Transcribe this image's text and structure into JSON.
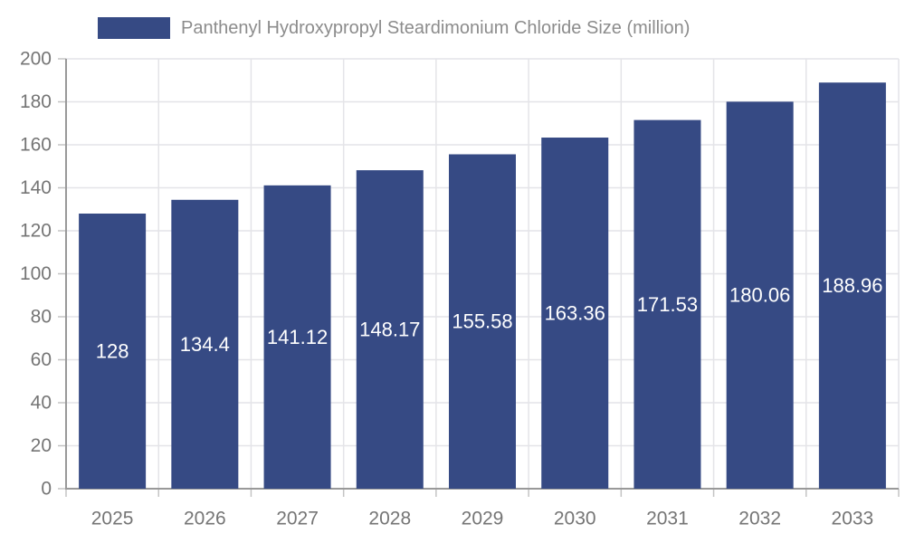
{
  "legend": {
    "label": "Panthenyl Hydroxypropyl Steardimonium Chloride Size (million)"
  },
  "colors": {
    "bar": "#364a84",
    "bar_label": "#ffffff",
    "axis_line": "#999999",
    "tick": "#c4c4c4",
    "gridline": "#e4e4e8",
    "axis_text": "#757575",
    "legend_text": "#8c8c8c"
  },
  "chart_data": {
    "type": "bar",
    "title": "Panthenyl Hydroxypropyl Steardimonium Chloride Size (million)",
    "series_name": "Panthenyl Hydroxypropyl Steardimonium Chloride Size (million)",
    "categories": [
      "2025",
      "2026",
      "2027",
      "2028",
      "2029",
      "2030",
      "2031",
      "2032",
      "2033"
    ],
    "values": [
      128,
      134.4,
      141.12,
      148.17,
      155.58,
      163.36,
      171.53,
      180.06,
      188.96
    ],
    "value_labels": [
      "128",
      "134.4",
      "141.12",
      "148.17",
      "155.58",
      "163.36",
      "171.53",
      "180.06",
      "188.96"
    ],
    "xlabel": "",
    "ylabel": "",
    "ylim": [
      0,
      200
    ],
    "ytick_step": 20,
    "yticks": [
      0,
      20,
      40,
      60,
      80,
      100,
      120,
      140,
      160,
      180,
      200
    ],
    "grid": true,
    "legend_position": "top-left"
  }
}
